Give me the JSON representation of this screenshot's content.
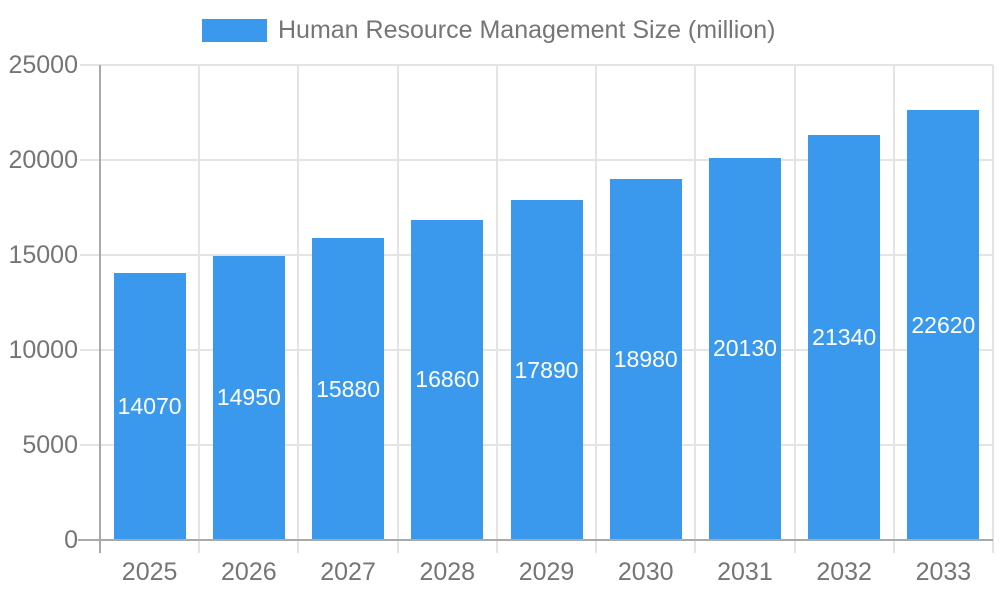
{
  "legend": {
    "label": "Human Resource Management Size (million)"
  },
  "chart_data": {
    "type": "bar",
    "title": "",
    "categories": [
      "2025",
      "2026",
      "2027",
      "2028",
      "2029",
      "2030",
      "2031",
      "2032",
      "2033"
    ],
    "series": [
      {
        "name": "Human Resource Management Size (million)",
        "values": [
          14070,
          14950,
          15880,
          16860,
          17890,
          18980,
          20130,
          21340,
          22620
        ]
      }
    ],
    "bar_value_labels": [
      "14070",
      "14950",
      "15880",
      "16860",
      "17890",
      "18980",
      "20130",
      "21340",
      "22620"
    ],
    "xlabel": "",
    "ylabel": "",
    "ylim": [
      0,
      25000
    ],
    "yticks": [
      0,
      5000,
      10000,
      15000,
      20000,
      25000
    ],
    "ytick_labels": [
      "0",
      "5000",
      "10000",
      "15000",
      "20000",
      "25000"
    ],
    "grid": true,
    "legend_position": "top",
    "colors": {
      "bar": "#3A99EC",
      "bar_label": "#FFFFFF",
      "axis_text": "#757575",
      "grid_line": "#E4E4E4",
      "axis_line": "#A9A9A9",
      "background": "#FFFFFF"
    }
  }
}
